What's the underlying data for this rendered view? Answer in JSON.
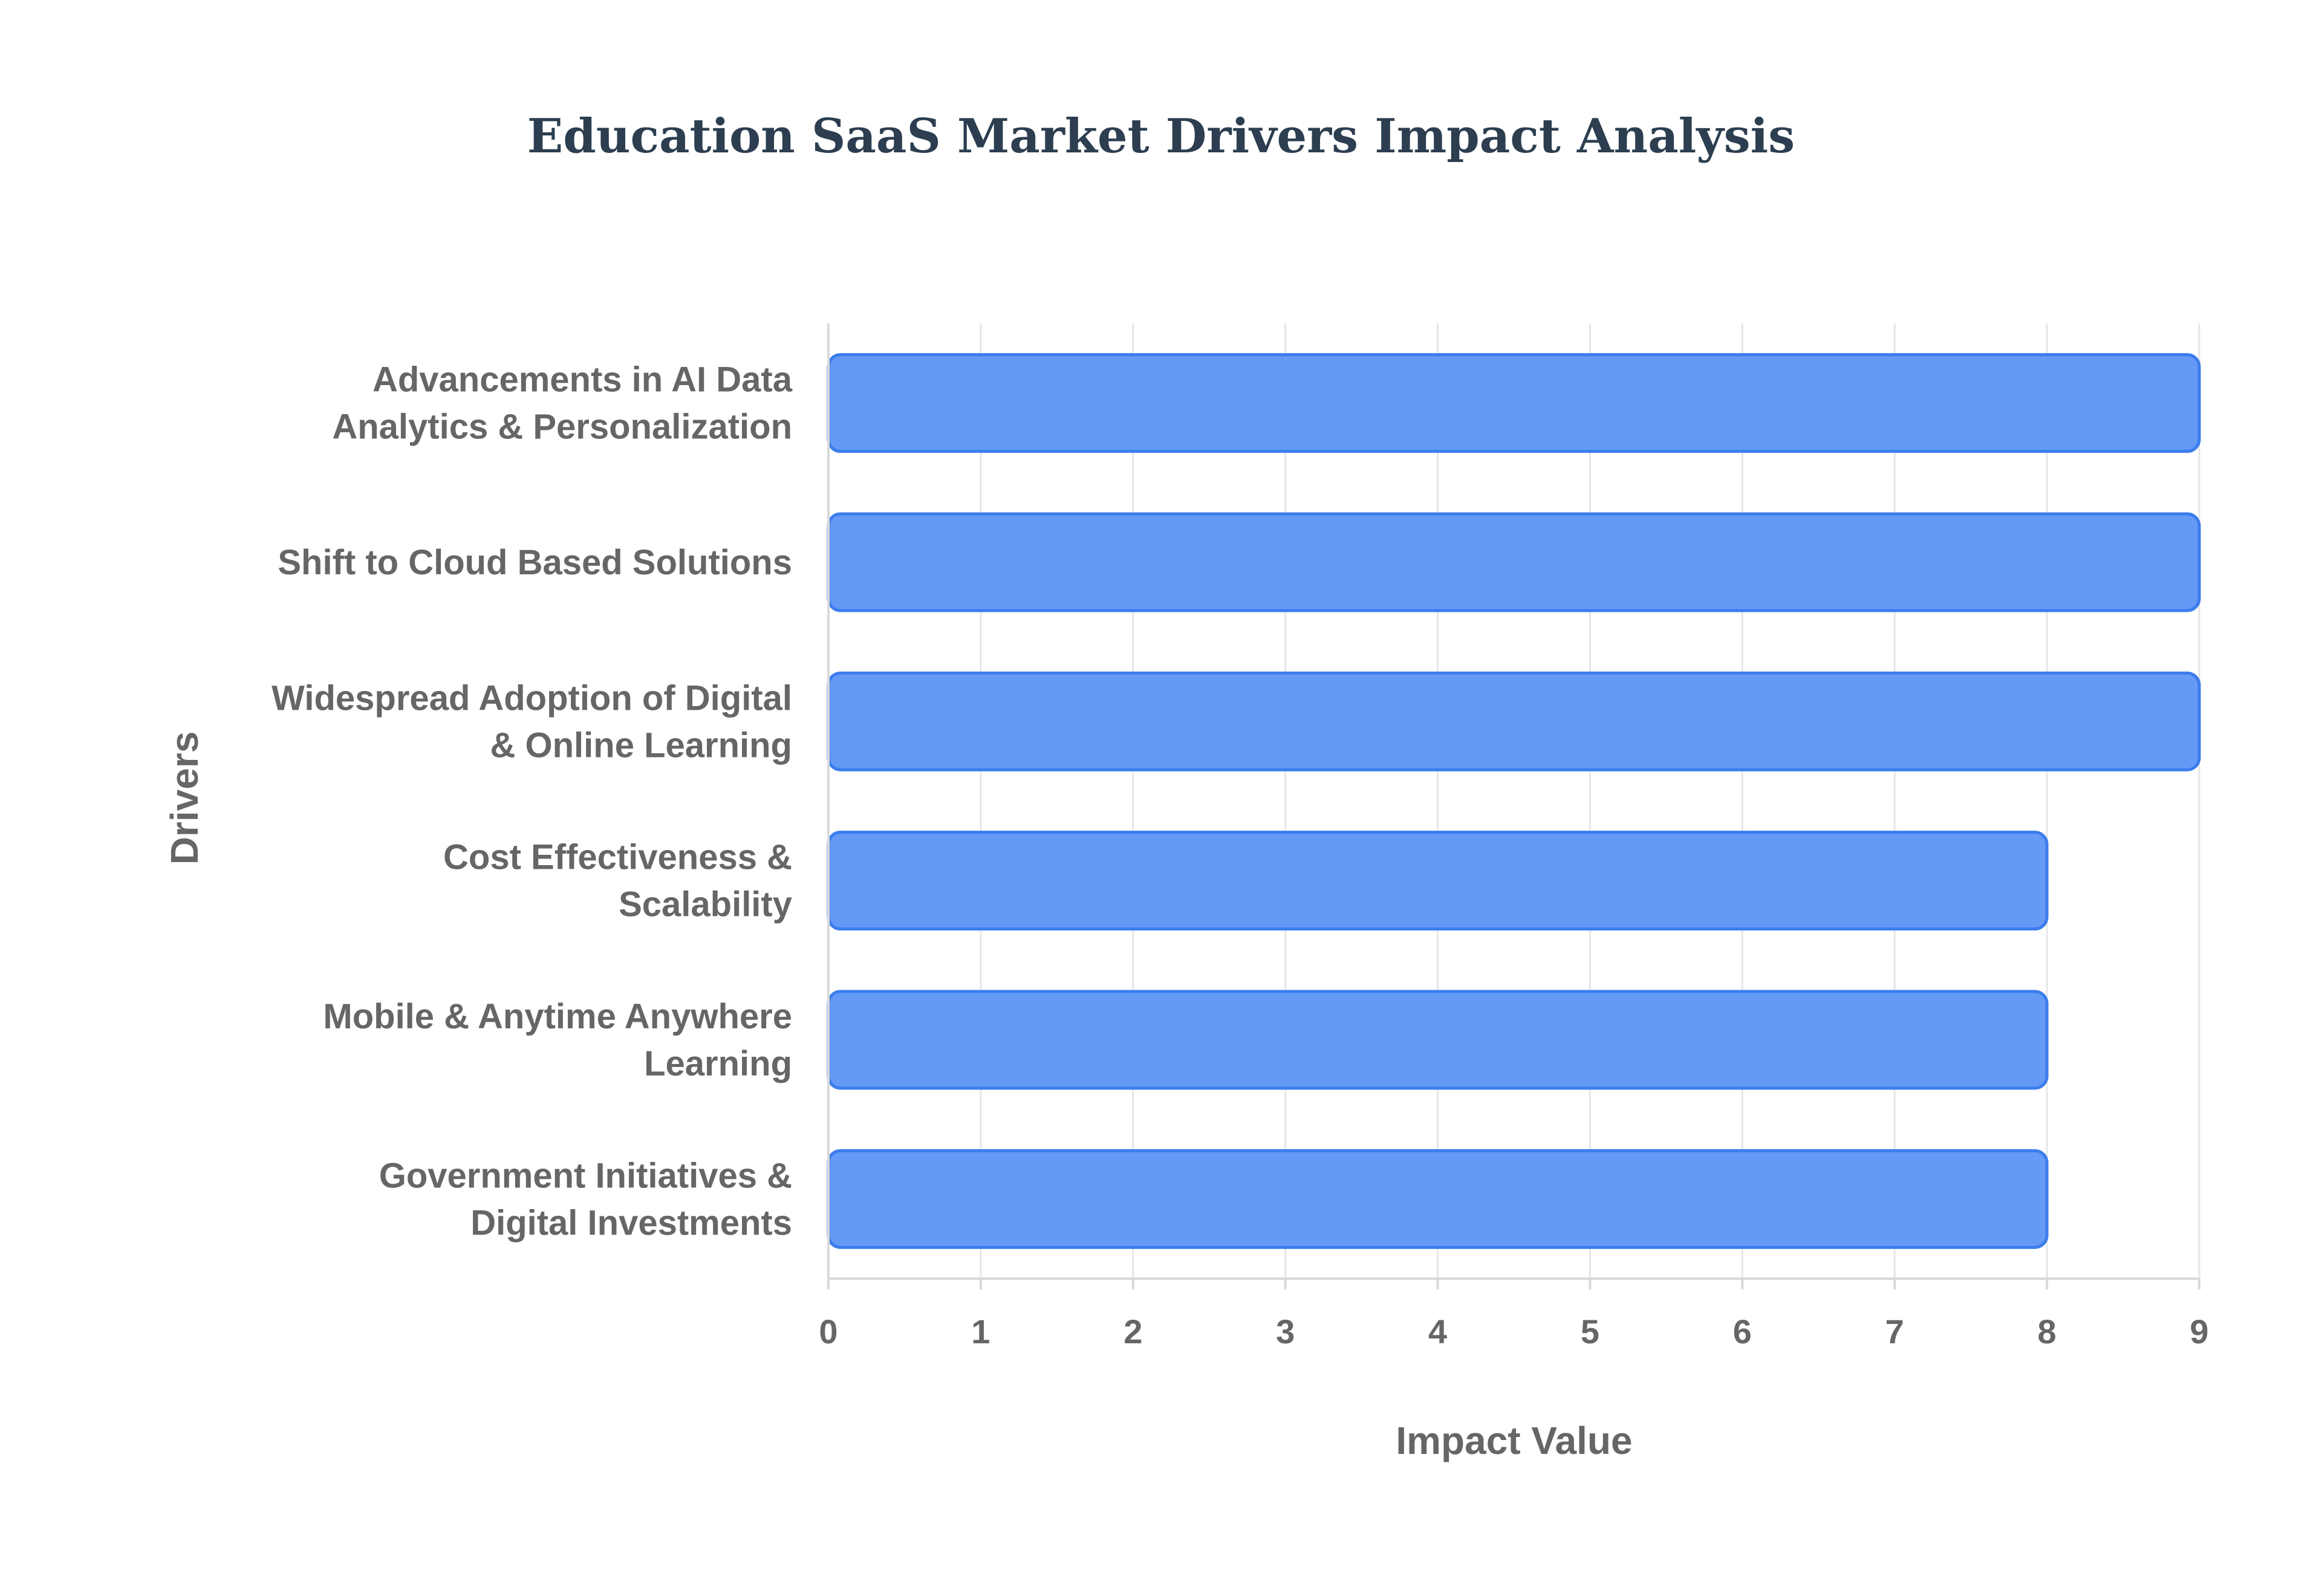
{
  "chart_data": {
    "type": "bar",
    "orientation": "horizontal",
    "title": "Education SaaS Market Drivers Impact Analysis",
    "xlabel": "Impact Value",
    "ylabel": "Drivers",
    "xlim": [
      0,
      9
    ],
    "xticks": [
      "0",
      "1",
      "2",
      "3",
      "4",
      "5",
      "6",
      "7",
      "8",
      "9"
    ],
    "grid": true,
    "legend": "none",
    "categories": [
      [
        "Advancements in AI Data",
        "Analytics & Personalization"
      ],
      [
        "Shift to Cloud Based Solutions"
      ],
      [
        "Widespread Adoption of Digital",
        "& Online Learning"
      ],
      [
        "Cost Effectiveness &",
        "Scalability"
      ],
      [
        "Mobile & Anytime Anywhere",
        "Learning"
      ],
      [
        "Government Initiatives &",
        "Digital Investments"
      ]
    ],
    "values": [
      9,
      9,
      9,
      8,
      8,
      8
    ],
    "bar_color": "#6499f6",
    "bar_edge_color": "#3b7ded",
    "title_color": "#2c3e50",
    "text_color": "#666666"
  }
}
